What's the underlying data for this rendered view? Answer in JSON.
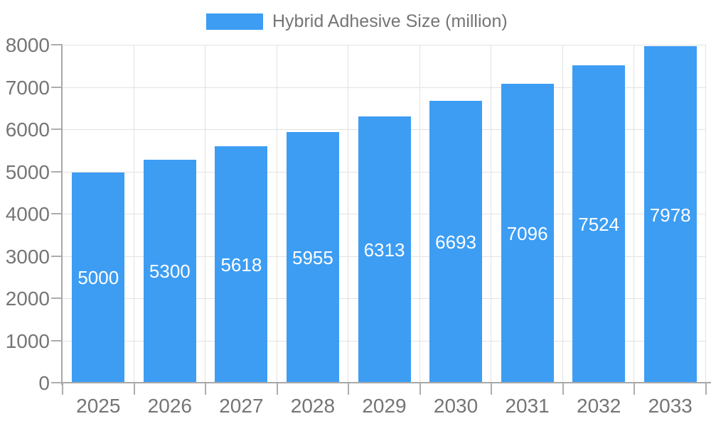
{
  "legend": {
    "items": [
      {
        "label": "Hybrid Adhesive Size (million)",
        "color": "#3D9DF3"
      }
    ]
  },
  "colors": {
    "bar": "#3D9DF3",
    "label_text": "#757575",
    "bar_value_text": "#FFFFFF",
    "axis_line": "#A8A8A8",
    "tick": "#ADADAD",
    "gridline": "#E2E2E2",
    "background": "#FFFFFF"
  },
  "chart_data": {
    "type": "bar",
    "title": "",
    "legend_label": "Hybrid Adhesive Size (million)",
    "legend_position": "top",
    "categories": [
      "2025",
      "2026",
      "2027",
      "2028",
      "2029",
      "2030",
      "2031",
      "2032",
      "2033"
    ],
    "values": [
      5000,
      5300,
      5618,
      5955,
      6313,
      6693,
      7096,
      7524,
      7978
    ],
    "xlabel": "",
    "ylabel": "",
    "ylim": [
      0,
      8000
    ],
    "ytick_interval": 1000,
    "ytick_labels": [
      "0",
      "1000",
      "2000",
      "3000",
      "4000",
      "5000",
      "6000",
      "7000",
      "8000"
    ],
    "grid": true,
    "bar_value_labels": "inside-center"
  }
}
